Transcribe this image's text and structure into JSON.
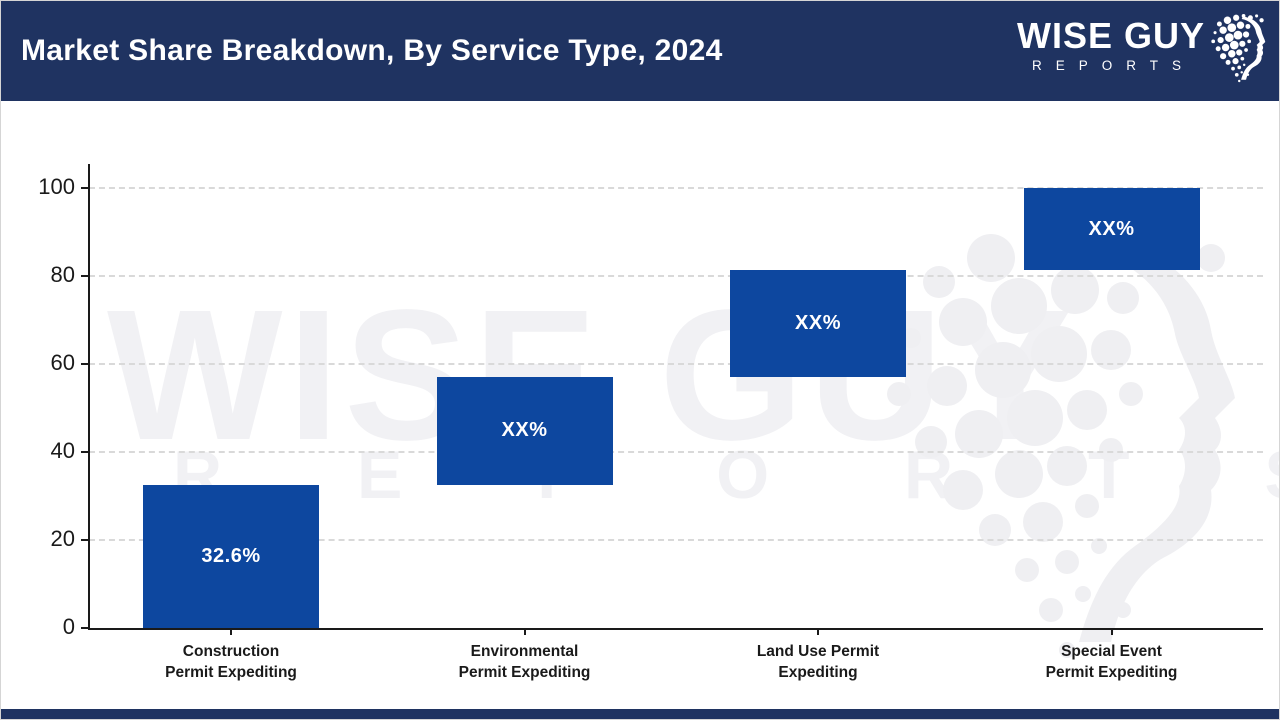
{
  "header": {
    "title": "Market Share Breakdown, By Service Type, 2024",
    "logo": {
      "wordmark": "WISE GUY",
      "subtext": "REPORTS"
    }
  },
  "watermark": {
    "wordmark": "WISE GUY",
    "subtext": "R E P O R T S"
  },
  "chart_data": {
    "type": "bar",
    "subtype": "stacked-waterfall",
    "title": "Market Share Breakdown, By Service Type, 2024",
    "categories": [
      "Construction Permit Expediting",
      "Environmental Permit Expediting",
      "Land Use Permit Expediting",
      "Special Event Permit Expediting"
    ],
    "segments": [
      {
        "category_lines": [
          "Construction",
          "Permit Expediting"
        ],
        "start": 0,
        "end": 32.6,
        "value": 32.6,
        "display": "32.6%"
      },
      {
        "category_lines": [
          "Environmental",
          "Permit Expediting"
        ],
        "start": 32.6,
        "end": 57.0,
        "value": 24.4,
        "display": "XX%"
      },
      {
        "category_lines": [
          "Land Use Permit",
          "Expediting"
        ],
        "start": 57.0,
        "end": 81.3,
        "value": 24.3,
        "display": "XX%"
      },
      {
        "category_lines": [
          "Special Event",
          "Permit Expediting"
        ],
        "start": 81.3,
        "end": 100,
        "value": 18.7,
        "display": "XX%"
      }
    ],
    "ylim": [
      0,
      100
    ],
    "yticks": [
      0,
      20,
      40,
      60,
      80,
      100
    ],
    "xlabel": "",
    "ylabel": "",
    "grid": "horizontal-dashed",
    "legend": "none",
    "bar_color": "#0d479f",
    "bar_label_color": "#ffffff",
    "grid_color": "#d9d9d9",
    "text_color": "#1a1a1a"
  },
  "colors": {
    "header_navy": "#1f3361",
    "bar_blue": "#0d479f",
    "watermark_gray": "#f1f1f4",
    "background": "#ffffff"
  }
}
